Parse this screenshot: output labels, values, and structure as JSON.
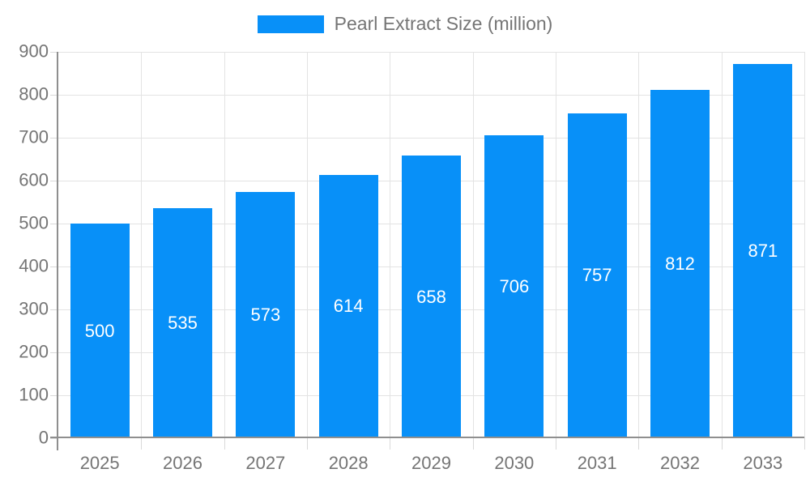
{
  "colors": {
    "bar": "#0890f8",
    "grid": "#e3e3e3",
    "tick": "#d9d9d9",
    "axis": "#8f8f8f",
    "text": "#757575",
    "value_label": "#ffffff"
  },
  "chart_data": {
    "type": "bar",
    "title": "",
    "categories": [
      "2025",
      "2026",
      "2027",
      "2028",
      "2029",
      "2030",
      "2031",
      "2032",
      "2033"
    ],
    "series": [
      {
        "name": "Pearl Extract Size (million)",
        "values": [
          500,
          535,
          573,
          614,
          658,
          706,
          757,
          812,
          871
        ]
      }
    ],
    "xlabel": "",
    "ylabel": "",
    "ylim": [
      0,
      900
    ],
    "ytick_step": 100,
    "yticks": [
      0,
      100,
      200,
      300,
      400,
      500,
      600,
      700,
      800,
      900
    ],
    "grid": true,
    "value_labels": "inside-center",
    "legend_position": "top-center"
  }
}
